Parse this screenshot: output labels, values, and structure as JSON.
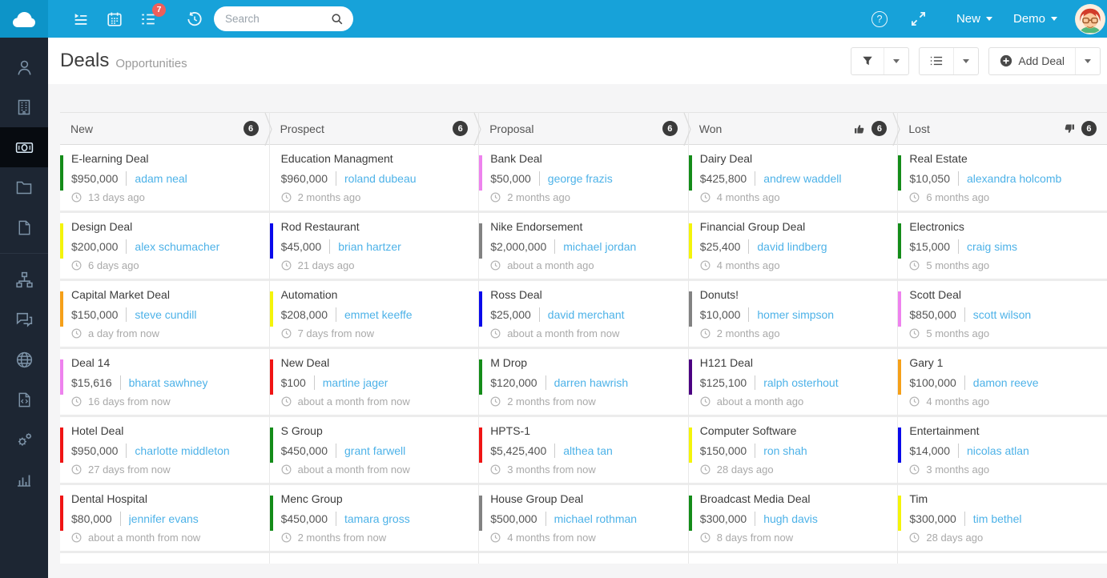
{
  "navbar": {
    "search_placeholder": "Search",
    "tasks_badge": "7",
    "help_glyph": "?",
    "new_label": "New",
    "user_label": "Demo",
    "icons": [
      "stream-icon",
      "calendar-icon",
      "tasks-icon",
      "history-icon"
    ]
  },
  "sidebar": {
    "items": [
      {
        "icon": "user-icon",
        "active": false
      },
      {
        "icon": "building-icon",
        "active": false
      },
      {
        "icon": "money-icon",
        "active": true
      },
      {
        "icon": "folder-icon",
        "active": false
      },
      {
        "icon": "file-icon",
        "active": false
      },
      {
        "icon": "sitemap-icon",
        "active": false
      },
      {
        "icon": "chat-icon",
        "active": false
      },
      {
        "icon": "globe-icon",
        "active": false
      },
      {
        "icon": "file-code-icon",
        "active": false
      },
      {
        "icon": "gears-icon",
        "active": false
      },
      {
        "icon": "bar-chart-icon",
        "active": false
      }
    ]
  },
  "header": {
    "title": "Deals",
    "subtitle": "Opportunities",
    "add_deal_label": "Add Deal"
  },
  "colors": {
    "navbar": "#17a2d9",
    "navbar_logo": "#0d94c8",
    "sidebar": "#1d2633",
    "link": "#4db2e8",
    "badge_red": "#ee5f5b"
  },
  "board": {
    "columns": [
      {
        "name": "New",
        "count": "6",
        "header_icon": null,
        "cards": [
          {
            "title": "E-learning Deal",
            "amount": "$950,000",
            "person": "adam neal",
            "time": "13 days ago",
            "color": "#148c19"
          },
          {
            "title": "Design Deal",
            "amount": "$200,000",
            "person": "alex schumacher",
            "time": "6 days ago",
            "color": "#f4f40a"
          },
          {
            "title": "Capital Market Deal",
            "amount": "$150,000",
            "person": "steve cundill",
            "time": "a day from now",
            "color": "#f5a019"
          },
          {
            "title": "Deal 14",
            "amount": "$15,616",
            "person": "bharat sawhney",
            "time": "16 days from now",
            "color": "#ee82ee"
          },
          {
            "title": "Hotel Deal",
            "amount": "$950,000",
            "person": "charlotte middleton",
            "time": "27 days from now",
            "color": "#f01414"
          },
          {
            "title": "Dental Hospital",
            "amount": "$80,000",
            "person": "jennifer evans",
            "time": "about a month from now",
            "color": "#f01414"
          }
        ]
      },
      {
        "name": "Prospect",
        "count": "6",
        "header_icon": null,
        "cards": [
          {
            "title": "Education Managment",
            "amount": "$960,000",
            "person": "roland dubeau",
            "time": "2 months ago",
            "color": null
          },
          {
            "title": "Rod Restaurant",
            "amount": "$45,000",
            "person": "brian hartzer",
            "time": "21 days ago",
            "color": "#0a0aeb"
          },
          {
            "title": "Automation",
            "amount": "$208,000",
            "person": "emmet keeffe",
            "time": "7 days from now",
            "color": "#f4f40a"
          },
          {
            "title": "New Deal",
            "amount": "$100",
            "person": "martine jager",
            "time": "about a month from now",
            "color": "#f01414"
          },
          {
            "title": "S Group",
            "amount": "$450,000",
            "person": "grant farwell",
            "time": "about a month from now",
            "color": "#148c19"
          },
          {
            "title": "Menc Group",
            "amount": "$450,000",
            "person": "tamara gross",
            "time": "2 months from now",
            "color": "#148c19"
          }
        ]
      },
      {
        "name": "Proposal",
        "count": "6",
        "header_icon": null,
        "cards": [
          {
            "title": "Bank Deal",
            "amount": "$50,000",
            "person": "george frazis",
            "time": "2 months ago",
            "color": "#ee82ee"
          },
          {
            "title": "Nike Endorsement",
            "amount": "$2,000,000",
            "person": "michael jordan",
            "time": "about a month ago",
            "color": "#828282"
          },
          {
            "title": "Ross Deal",
            "amount": "$25,000",
            "person": "david merchant",
            "time": "about a month from now",
            "color": "#0a0aeb"
          },
          {
            "title": "M Drop",
            "amount": "$120,000",
            "person": "darren hawrish",
            "time": "2 months from now",
            "color": "#148c19"
          },
          {
            "title": "HPTS-1",
            "amount": "$5,425,400",
            "person": "althea tan",
            "time": "3 months from now",
            "color": "#f01414"
          },
          {
            "title": "House Group Deal",
            "amount": "$500,000",
            "person": "michael rothman",
            "time": "4 months from now",
            "color": "#828282"
          }
        ]
      },
      {
        "name": "Won",
        "count": "6",
        "header_icon": "thumbs-up-icon",
        "cards": [
          {
            "title": "Dairy Deal",
            "amount": "$425,800",
            "person": "andrew waddell",
            "time": "4 months ago",
            "color": "#148c19"
          },
          {
            "title": "Financial Group Deal",
            "amount": "$25,400",
            "person": "david lindberg",
            "time": "4 months ago",
            "color": "#f4f40a"
          },
          {
            "title": "Donuts!",
            "amount": "$10,000",
            "person": "homer simpson",
            "time": "2 months ago",
            "color": "#828282"
          },
          {
            "title": "H121 Deal",
            "amount": "$125,100",
            "person": "ralph osterhout",
            "time": "about a month ago",
            "color": "#4b0082"
          },
          {
            "title": "Computer Software",
            "amount": "$150,000",
            "person": "ron shah",
            "time": "28 days ago",
            "color": "#f4f40a"
          },
          {
            "title": "Broadcast Media Deal",
            "amount": "$300,000",
            "person": "hugh davis",
            "time": "8 days from now",
            "color": "#148c19"
          }
        ]
      },
      {
        "name": "Lost",
        "count": "6",
        "header_icon": "thumbs-down-icon",
        "cards": [
          {
            "title": "Real Estate",
            "amount": "$10,050",
            "person": "alexandra holcomb",
            "time": "6 months ago",
            "color": "#148c19"
          },
          {
            "title": "Electronics",
            "amount": "$15,000",
            "person": "craig sims",
            "time": "5 months ago",
            "color": "#148c19"
          },
          {
            "title": "Scott Deal",
            "amount": "$850,000",
            "person": "scott wilson",
            "time": "5 months ago",
            "color": "#ee82ee"
          },
          {
            "title": "Gary 1",
            "amount": "$100,000",
            "person": "damon reeve",
            "time": "4 months ago",
            "color": "#f5a019"
          },
          {
            "title": "Entertainment",
            "amount": "$14,000",
            "person": "nicolas atlan",
            "time": "3 months ago",
            "color": "#0a0aeb"
          },
          {
            "title": "Tim",
            "amount": "$300,000",
            "person": "tim bethel",
            "time": "28 days ago",
            "color": "#f4f40a"
          }
        ]
      }
    ]
  }
}
